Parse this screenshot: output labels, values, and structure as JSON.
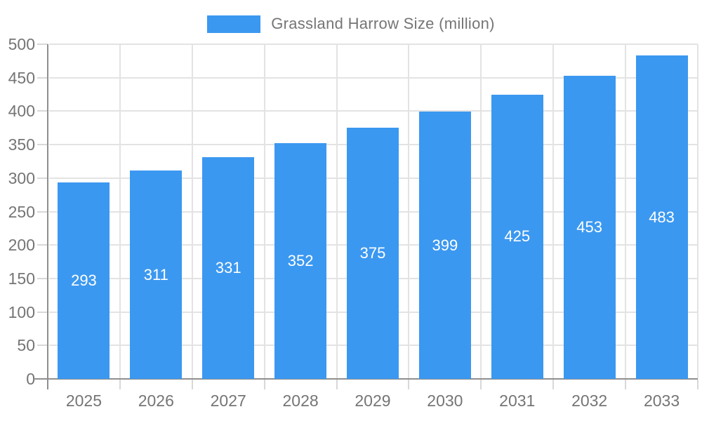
{
  "chart_data": {
    "type": "bar",
    "title": "Grassland Harrow Size (million)",
    "categories": [
      "2025",
      "2026",
      "2027",
      "2028",
      "2029",
      "2030",
      "2031",
      "2032",
      "2033"
    ],
    "values": [
      293,
      311,
      331,
      352,
      375,
      399,
      425,
      453,
      483
    ],
    "xlabel": "",
    "ylabel": "",
    "ylim": [
      0,
      500
    ],
    "ytick_step": 50,
    "grid": true,
    "legend_position": "top",
    "bar_color": "#3b98f0",
    "bar_label_color": "#ffffff",
    "axis_color": "#8f8f8f",
    "gridline_color": "#e3e3e3",
    "tick_color": "#d8d8d8",
    "text_color": "#757575",
    "background_color": "#ffffff"
  }
}
